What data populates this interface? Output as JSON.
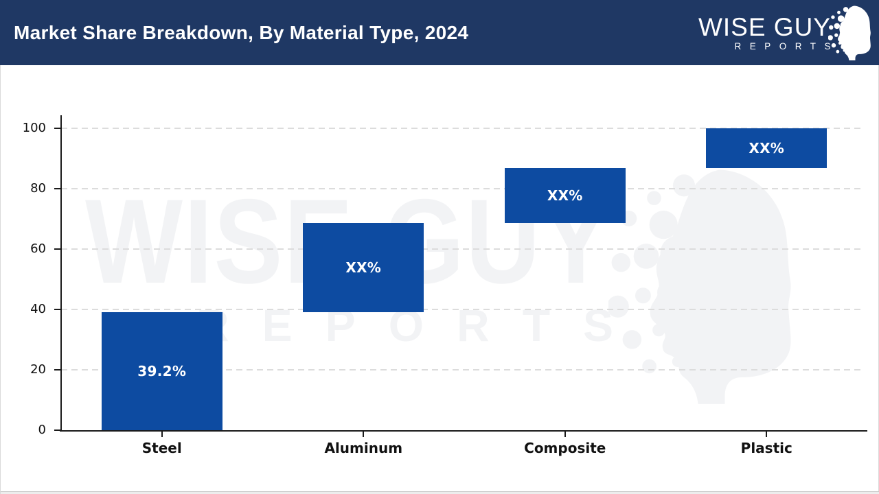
{
  "header": {
    "title": "Market Share Breakdown, By Material Type, 2024",
    "brand": {
      "name": "WISE GUY",
      "subname": "REPORTS"
    }
  },
  "watermark": {
    "line1": "WISE GUY",
    "line2": "REPORTS"
  },
  "chart_data": {
    "type": "bar",
    "variant": "waterfall",
    "title": "Market Share Breakdown, By Material Type, 2024",
    "xlabel": "",
    "ylabel": "",
    "categories": [
      "Steel",
      "Aluminum",
      "Composite",
      "Plastic"
    ],
    "segments": [
      {
        "category": "Steel",
        "start": 0,
        "end": 39.2,
        "label": "39.2%"
      },
      {
        "category": "Aluminum",
        "start": 39.2,
        "end": 68.6,
        "label": "XX%"
      },
      {
        "category": "Composite",
        "start": 68.6,
        "end": 86.8,
        "label": "XX%"
      },
      {
        "category": "Plastic",
        "start": 86.8,
        "end": 100,
        "label": "XX%"
      }
    ],
    "yticks": [
      "0",
      "20",
      "40",
      "60",
      "80",
      "100"
    ],
    "ylim": [
      0,
      104
    ],
    "grid": "horizontal-dashed",
    "legend": "none",
    "colors": {
      "bar": "#0d4ba1",
      "bar_label": "#ffffff",
      "axis": "#1a1a1a",
      "gridline": "#dcdcdc",
      "header_bg": "#1f3864",
      "watermark": "#f2f3f5"
    }
  }
}
